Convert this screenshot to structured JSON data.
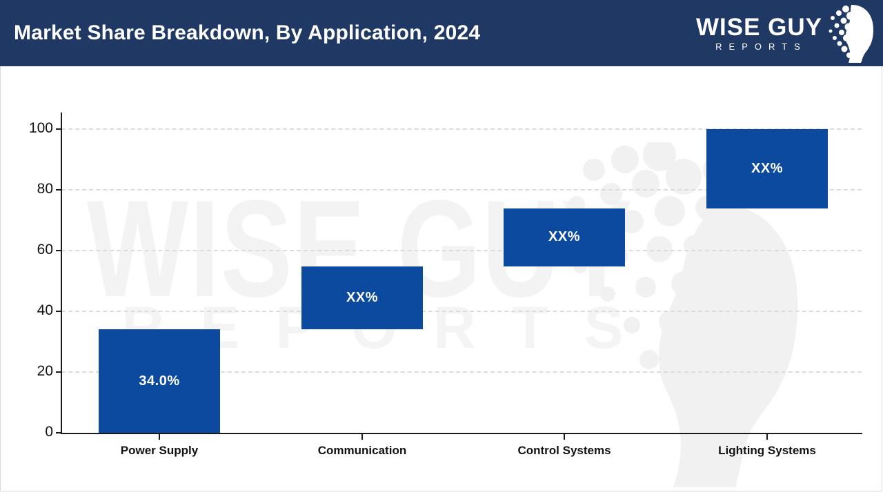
{
  "header": {
    "title": "Market Share Breakdown, By Application, 2024",
    "logo": {
      "line1": "WISE GUY",
      "line2": "REPORTS"
    }
  },
  "watermark": {
    "line1": "WISE GUY",
    "line2": "REPORTS"
  },
  "chart_data": {
    "type": "bar",
    "subtype": "waterfall",
    "title": "Market Share Breakdown, By Application, 2024",
    "categories": [
      "Power Supply",
      "Communication",
      "Control Systems",
      "Lighting Systems"
    ],
    "segments": [
      {
        "category": "Power Supply",
        "start": 0,
        "end": 34,
        "label": "34.0%"
      },
      {
        "category": "Communication",
        "start": 34,
        "end": 54.8,
        "label": "XX%"
      },
      {
        "category": "Control Systems",
        "start": 54.8,
        "end": 73.9,
        "label": "XX%"
      },
      {
        "category": "Lighting Systems",
        "start": 73.9,
        "end": 100,
        "label": "XX%"
      }
    ],
    "ylim": [
      0,
      100
    ],
    "yticks": [
      0,
      20,
      40,
      60,
      80,
      100
    ],
    "grid": "dashed-horizontal",
    "legend": "none",
    "colors": {
      "bar": "#0b4a9e",
      "bar_label": "#ffffff",
      "header_bg": "#1f3864",
      "axis": "#1a1a1a",
      "gridline": "#dcdcdc",
      "watermark": "#f3f3f3"
    }
  }
}
